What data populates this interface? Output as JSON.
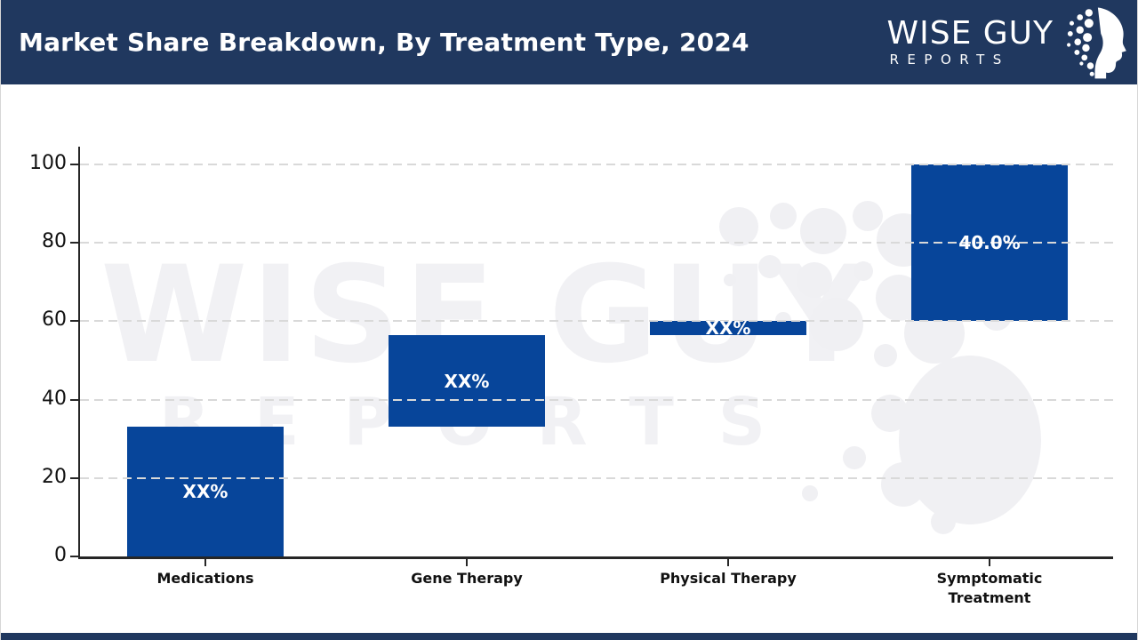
{
  "header": {
    "title": "Market Share Breakdown, By Treatment Type, 2024",
    "logo_line1": "WISE GUY",
    "logo_line2": "REPORTS"
  },
  "watermark": {
    "line1": "WISE GUY",
    "line2": "REPORTS"
  },
  "colors": {
    "header_bg": "#20385f",
    "footer_bg": "#20385f",
    "bar_fill": "#07459a",
    "grid": "#d9d9d9",
    "axis": "#262626",
    "watermark": "#f1f1f4"
  },
  "chart_data": {
    "type": "bar",
    "subtype": "waterfall",
    "title": "Market Share Breakdown, By Treatment Type, 2024",
    "categories": [
      "Medications",
      "Gene Therapy",
      "Physical Therapy",
      "Symptomatic Treatment"
    ],
    "series": [
      {
        "segments": [
          {
            "category": "Medications",
            "label": "XX%",
            "start": 0,
            "end": 33
          },
          {
            "category": "Gene Therapy",
            "label": "XX%",
            "start": 33,
            "end": 56.5
          },
          {
            "category": "Physical Therapy",
            "label": "XX%",
            "start": 56.5,
            "end": 60
          },
          {
            "category": "Symptomatic Treatment",
            "label": "40.0%",
            "start": 60,
            "end": 100
          }
        ]
      }
    ],
    "yticks": [
      0,
      20,
      40,
      60,
      80,
      100
    ],
    "ylim": [
      0,
      105
    ],
    "xlabel": "",
    "ylabel": "",
    "grid": "horizontal-dashed",
    "legend": "none",
    "bar_color": "#07459a"
  }
}
